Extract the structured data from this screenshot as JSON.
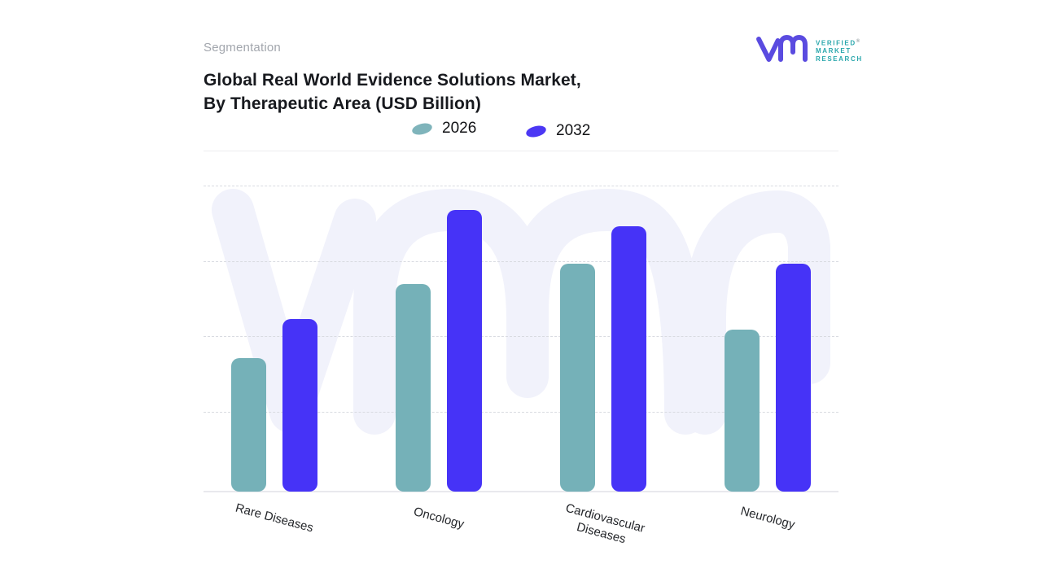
{
  "header": {
    "eyebrow": "Segmentation",
    "title_line1": "Global Real World Evidence Solutions Market,",
    "title_line2": "By Therapeutic Area (USD Billion)"
  },
  "logo": {
    "line1": "VERIFIED",
    "line2": "MARKET",
    "line3": "RESEARCH",
    "registered": "®",
    "mark_color": "#5a4be0",
    "text_color": "#2aa7ac"
  },
  "legend": {
    "items": [
      {
        "label": "2026",
        "swatch_color": "#7fb4bb"
      },
      {
        "label": "2032",
        "swatch_color": "#4c38f4"
      }
    ]
  },
  "chart_data": {
    "type": "bar",
    "title": "Global Real World Evidence Solutions Market, By Therapeutic Area (USD Billion)",
    "unit": "USD Billion",
    "categories": [
      "Rare Diseases",
      "Oncology",
      "Cardiovascular Diseases",
      "Neurology"
    ],
    "series": [
      {
        "name": "2026",
        "color": "#75b1b8",
        "values": [
          1.75,
          2.73,
          2.99,
          2.13
        ]
      },
      {
        "name": "2032",
        "color": "#4633f7",
        "values": [
          2.27,
          3.7,
          3.49,
          2.99
        ]
      }
    ],
    "ylim": [
      0,
      4.5
    ],
    "yaxis_labels_shown": false,
    "value_labels_shown": false,
    "grid": "horizontal-dashed",
    "legend_position": "top-center",
    "xlabel_rotation_deg": 15
  },
  "colors": {
    "watermark": "#f1f2fb",
    "gridline": "#d9dbe1",
    "divider": "#ececef",
    "baseline": "#e9e9ed",
    "eyebrow_text": "#a2a6ad",
    "title_text": "#17191e"
  }
}
